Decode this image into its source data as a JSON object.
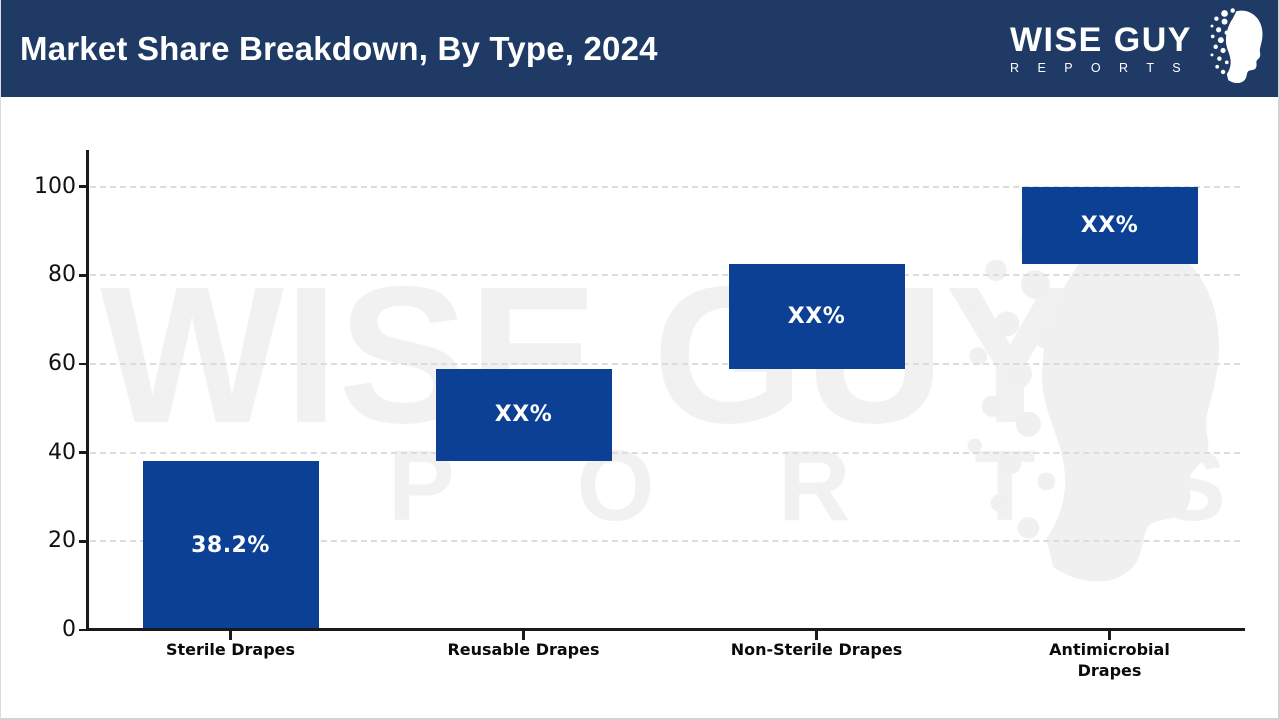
{
  "header": {
    "title": "Market Share Breakdown, By Type, 2024",
    "bg_color": "#1f3a64",
    "logo_line1": "WISE GUY",
    "logo_line2": "R E P O R T S"
  },
  "watermark": {
    "line1": "WISE GUY",
    "line2": "P O R T S"
  },
  "chart_data": {
    "type": "bar",
    "subtype": "waterfall",
    "title": "Market Share Breakdown, By Type, 2024",
    "categories": [
      "Sterile Drapes",
      "Reusable Drapes",
      "Non-Sterile Drapes",
      "Antimicrobial\nDrapes"
    ],
    "bars": [
      {
        "category": "Sterile Drapes",
        "base": 0,
        "top": 38.2,
        "value": 38.2,
        "label": "38.2%"
      },
      {
        "category": "Reusable Drapes",
        "base": 38.2,
        "top": 58.8,
        "value": 20.6,
        "label": "XX%"
      },
      {
        "category": "Non-Sterile Drapes",
        "base": 58.8,
        "top": 82.6,
        "value": 23.8,
        "label": "XX%"
      },
      {
        "category": "Antimicrobial Drapes",
        "base": 82.6,
        "top": 100,
        "value": 17.4,
        "label": "XX%"
      }
    ],
    "yticks": [
      0,
      20,
      40,
      60,
      80,
      100
    ],
    "ylim": [
      0,
      107
    ],
    "xlabel": "",
    "ylabel": "",
    "grid": "horizontal-dashed",
    "legend": "none",
    "bar_color": "#0b4094",
    "bar_label_color": "#ffffff",
    "axis_color": "#1a1a1a",
    "grid_color": "#dcdcdc",
    "tick_label_color": "#111111"
  }
}
